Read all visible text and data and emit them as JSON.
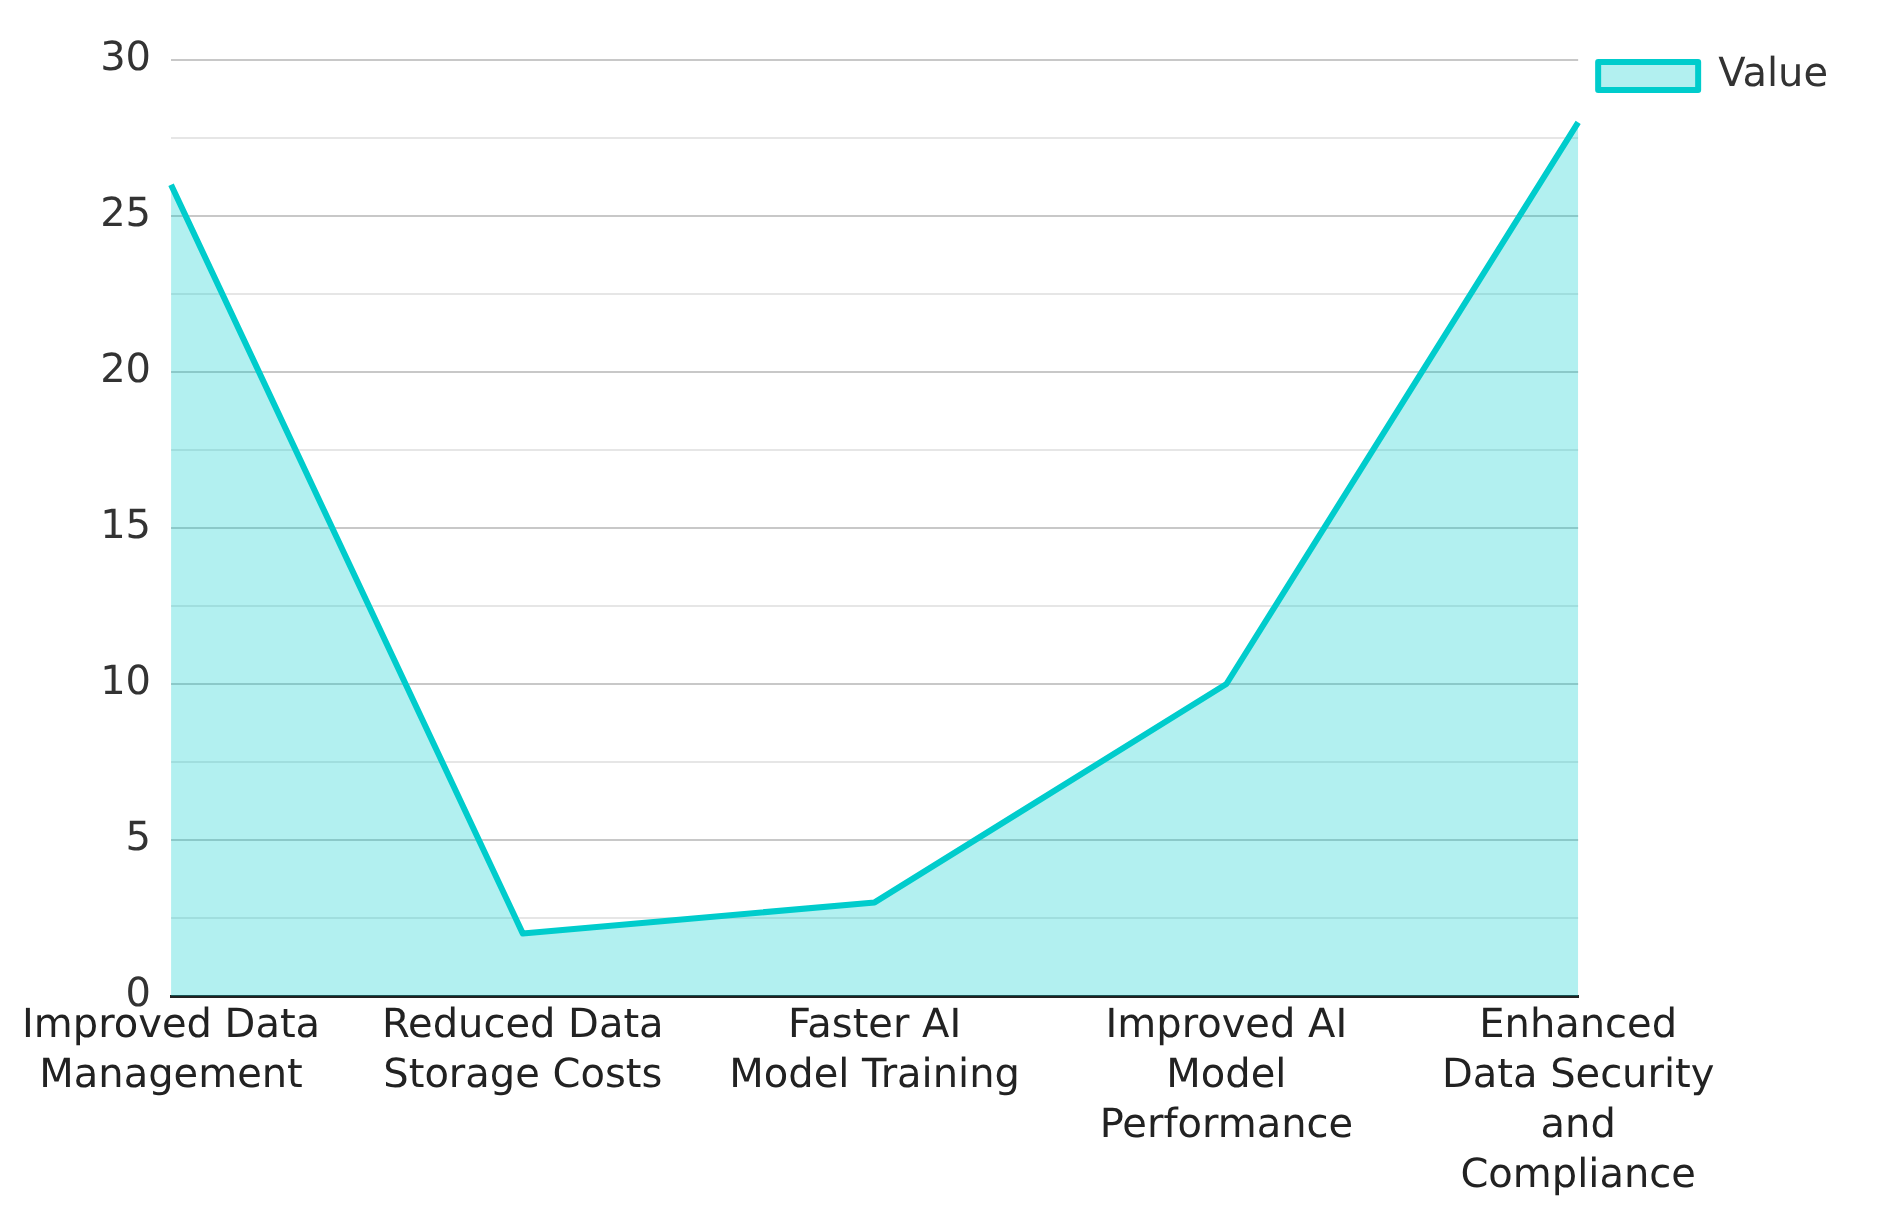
{
  "chart_data": {
    "type": "area",
    "categories": [
      "Improved Data Management",
      "Reduced Data Storage Costs",
      "Faster AI Model Training",
      "Improved AI Model Performance",
      "Enhanced Data Security and Compliance"
    ],
    "series": [
      {
        "name": "Value",
        "color": "#00cccc",
        "values": [
          26,
          2,
          3,
          10,
          28
        ]
      }
    ],
    "ylim": [
      0,
      30
    ],
    "yticks": [
      0,
      {
        "value": 2.5,
        "label": null
      },
      5,
      {
        "value": 7.5,
        "label": null
      },
      10,
      {
        "value": 12.5,
        "label": null
      },
      15,
      {
        "value": 17.5,
        "label": null
      },
      20,
      {
        "value": 22.5,
        "label": null
      },
      25,
      {
        "value": 27.5,
        "label": null
      },
      30
    ],
    "grid": "y",
    "legend": "top right"
  }
}
